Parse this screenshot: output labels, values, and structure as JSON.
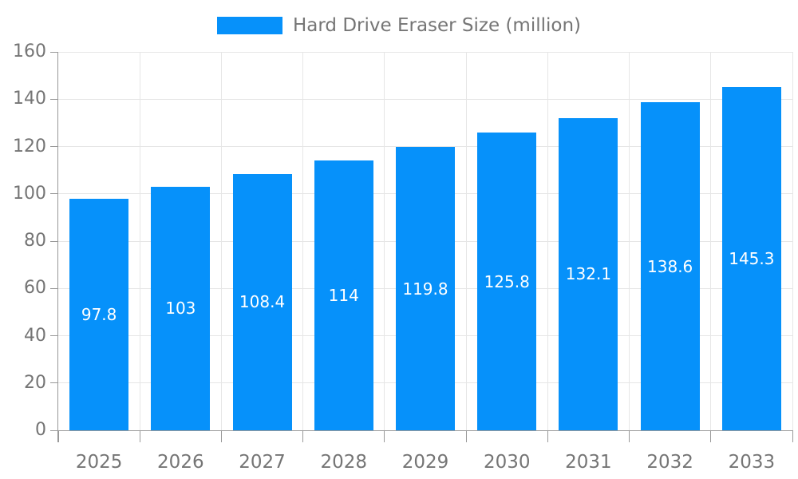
{
  "chart_data": {
    "type": "bar",
    "title": "Hard Drive Eraser Size (million)",
    "categories": [
      "2025",
      "2026",
      "2027",
      "2028",
      "2029",
      "2030",
      "2031",
      "2032",
      "2033"
    ],
    "values": [
      97.8,
      103,
      108.4,
      114,
      119.8,
      125.8,
      132.1,
      138.6,
      145.3
    ],
    "value_labels": [
      "97.8",
      "103",
      "108.4",
      "114",
      "119.8",
      "125.8",
      "132.1",
      "138.6",
      "145.3"
    ],
    "xlabel": "",
    "ylabel": "",
    "ylim": [
      0,
      160
    ],
    "ytick_step": 20,
    "ytick_labels": [
      "0",
      "20",
      "40",
      "60",
      "80",
      "100",
      "120",
      "140",
      "160"
    ],
    "grid": true,
    "legend_position": "top",
    "colors": {
      "bar": "#0691fa",
      "grid": "#e6e6e6",
      "axis": "#999999",
      "text": "#757575",
      "bar_label": "#ffffff",
      "background": "#ffffff"
    }
  }
}
